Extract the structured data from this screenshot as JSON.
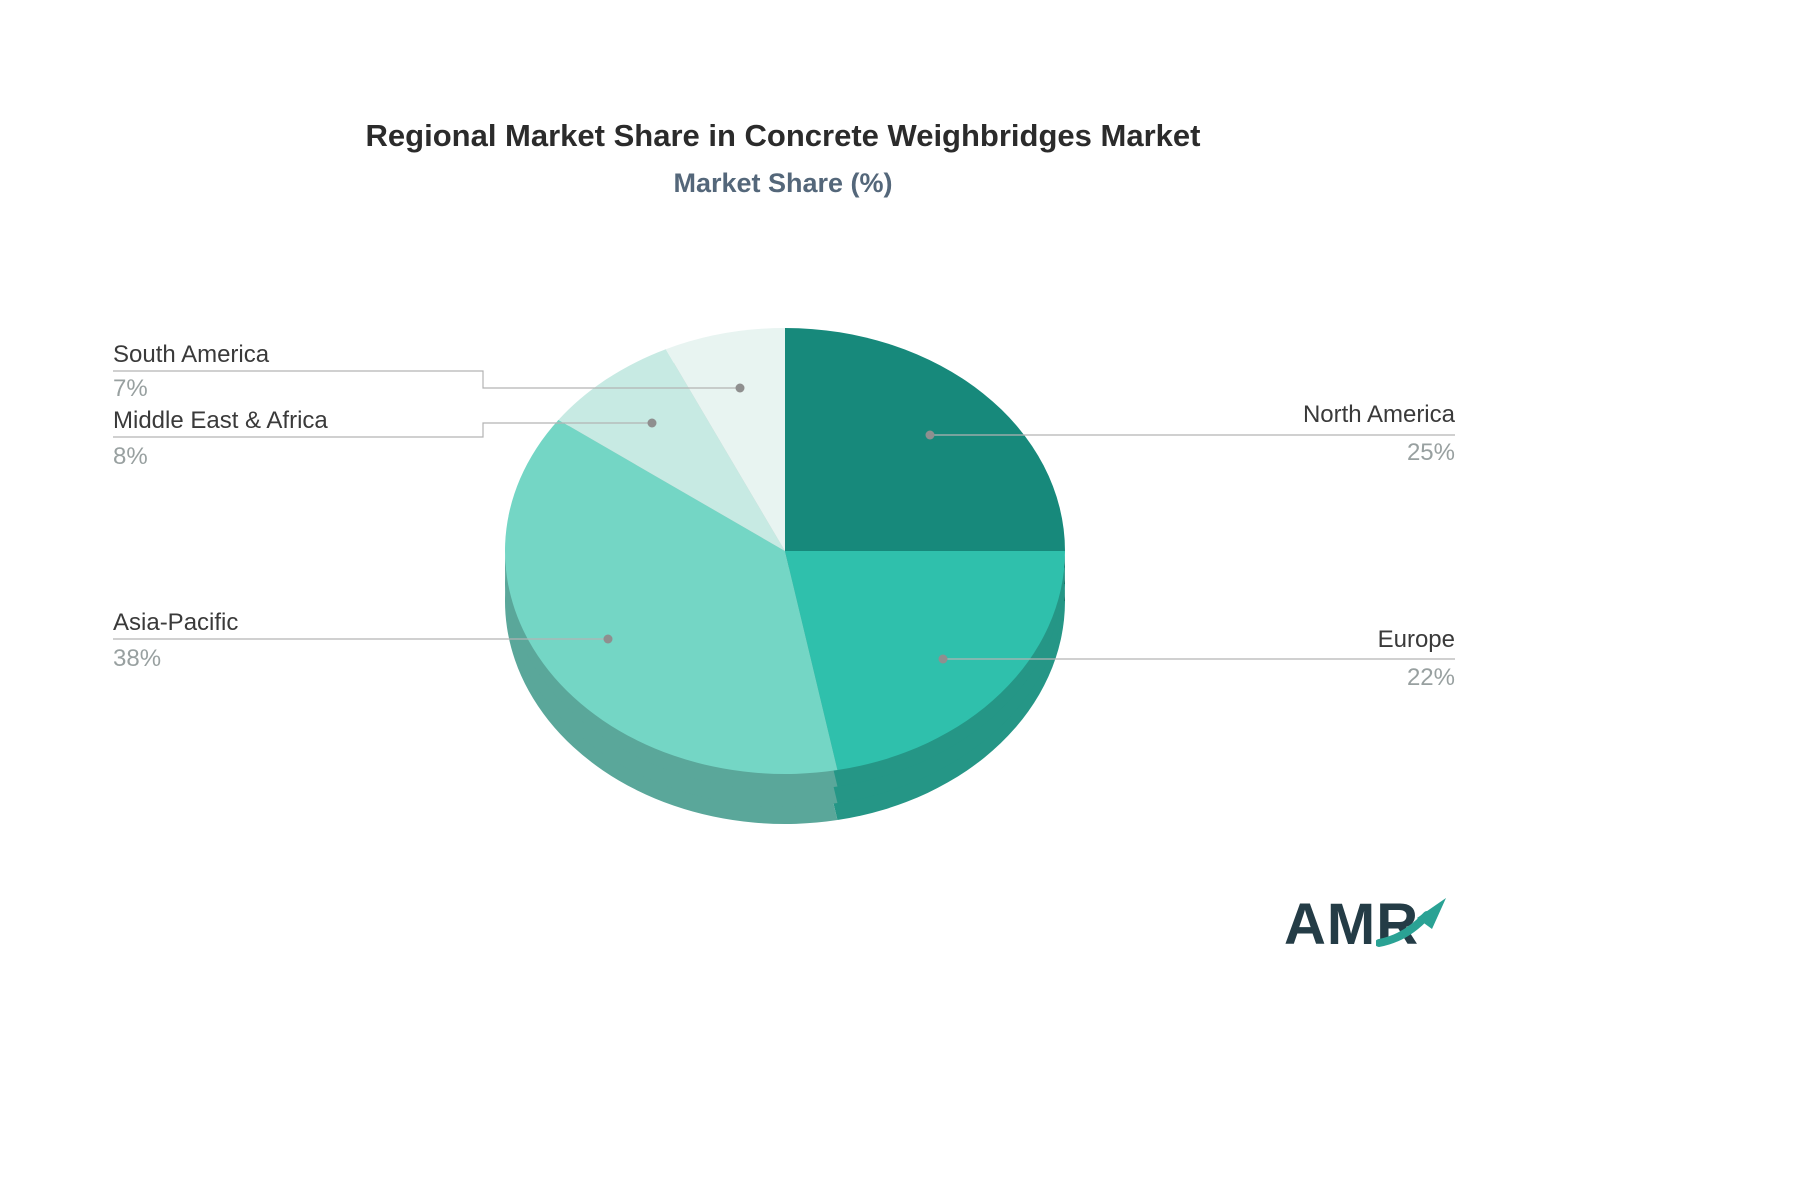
{
  "header": {
    "title": "Regional Market Share in Concrete Weighbridges Market",
    "subtitle": "Market Share (%)"
  },
  "logo": {
    "text": "AMR"
  },
  "chart_data": {
    "type": "pie",
    "style": "3d",
    "title": "Regional Market Share in Concrete Weighbridges Market",
    "subtitle": "Market Share (%)",
    "unit": "%",
    "legend_position": "none",
    "label_style": "callouts-with-leader-lines",
    "start_angle_deg": 0,
    "direction": "clockwise",
    "slices": [
      {
        "label": "North America",
        "value": 25,
        "value_text": "25%",
        "color": "#17897b"
      },
      {
        "label": "Europe",
        "value": 22,
        "value_text": "22%",
        "color": "#2fc0ac"
      },
      {
        "label": "Asia-Pacific",
        "value": 38,
        "value_text": "38%",
        "color": "#74d6c5"
      },
      {
        "label": "Middle East & Africa",
        "value": 8,
        "value_text": "8%",
        "color": "#c7eae3"
      },
      {
        "label": "South America",
        "value": 7,
        "value_text": "7%",
        "color": "#e8f4f1"
      }
    ]
  }
}
